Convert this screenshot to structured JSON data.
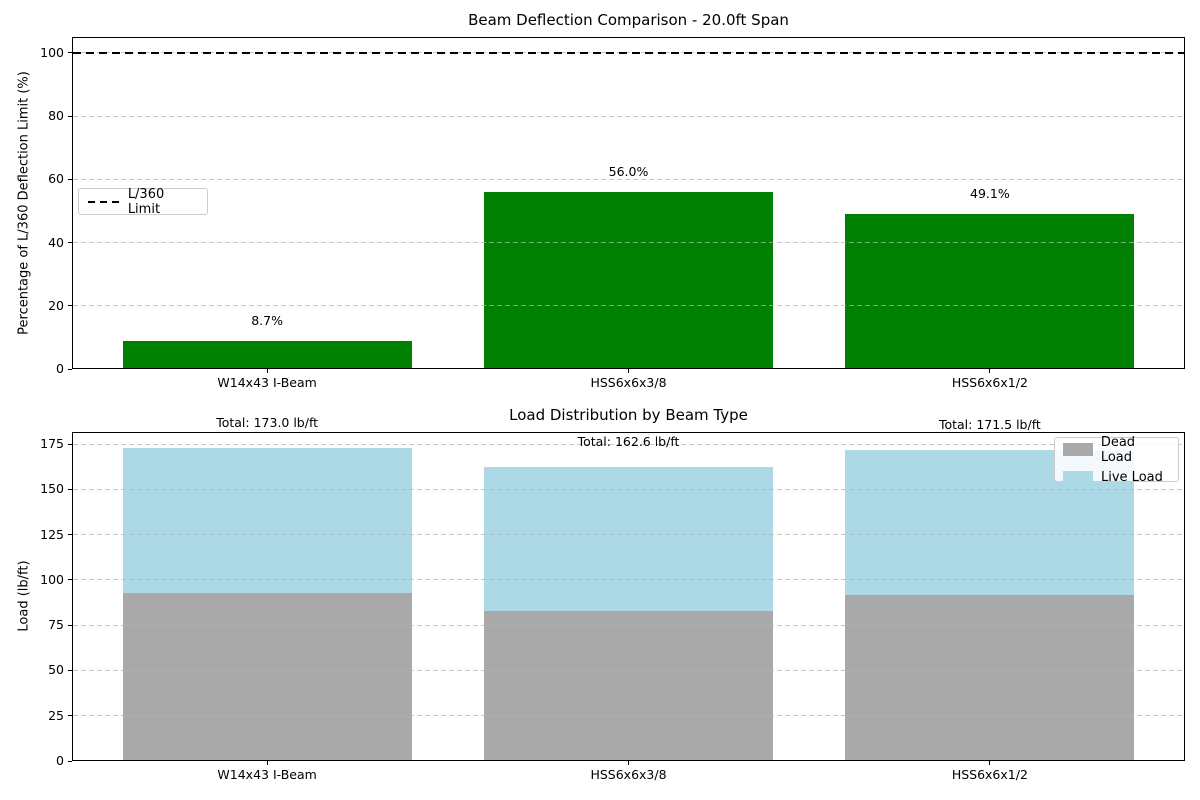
{
  "chart_data": [
    {
      "type": "bar",
      "title": "Beam Deflection Comparison - 20.0ft Span",
      "ylabel": "Percentage of L/360 Deflection Limit (%)",
      "categories": [
        "W14x43 I-Beam",
        "HSS6x6x3/8",
        "HSS6x6x1/2"
      ],
      "values": [
        8.7,
        56.0,
        49.1
      ],
      "bar_labels": [
        "8.7%",
        "56.0%",
        "49.1%"
      ],
      "bar_color": "#008000",
      "ylim": [
        0,
        105
      ],
      "yticks": [
        0,
        20,
        40,
        60,
        80,
        100
      ],
      "grid": true,
      "reference_line": {
        "value": 100,
        "label": "L/360 Limit",
        "color": "#000000",
        "style": "dashed"
      },
      "legend": {
        "position": "center-left",
        "entries": [
          {
            "label": "L/360 Limit",
            "swatch": "dashed-line",
            "color": "#000000"
          }
        ]
      }
    },
    {
      "type": "stacked-bar",
      "title": "Load Distribution by Beam Type",
      "ylabel": "Load (lb/ft)",
      "categories": [
        "W14x43 I-Beam",
        "HSS6x6x3/8",
        "HSS6x6x1/2"
      ],
      "series": [
        {
          "name": "Dead Load",
          "color": "#a9a9a9",
          "values": [
            93.0,
            82.6,
            91.5
          ]
        },
        {
          "name": "Live Load",
          "color": "#add8e6",
          "values": [
            80.0,
            80.0,
            80.0
          ]
        }
      ],
      "totals": [
        173.0,
        162.6,
        171.5
      ],
      "total_labels": [
        "Total: 173.0 lb/ft",
        "Total: 162.6 lb/ft",
        "Total: 171.5 lb/ft"
      ],
      "ylim": [
        0,
        181.65
      ],
      "yticks": [
        0,
        25,
        50,
        75,
        100,
        125,
        150,
        175
      ],
      "grid": true,
      "legend": {
        "position": "top-right",
        "entries": [
          {
            "label": "Dead Load",
            "swatch": "fill",
            "color": "#a9a9a9"
          },
          {
            "label": "Live Load",
            "swatch": "fill",
            "color": "#add8e6"
          }
        ]
      }
    }
  ]
}
